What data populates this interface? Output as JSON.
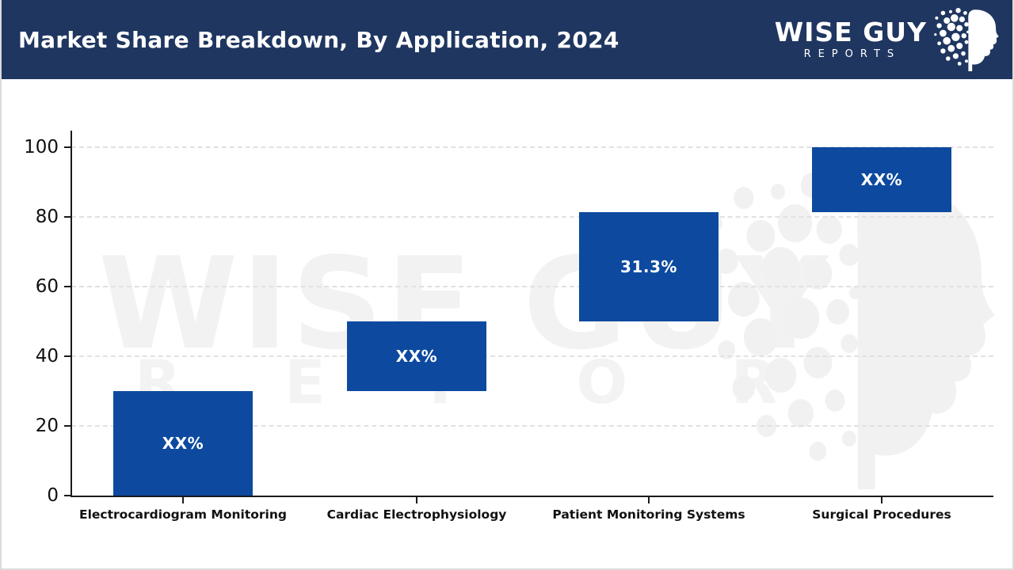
{
  "header": {
    "title": "Market Share Breakdown, By Application, 2024",
    "logo": {
      "line1": "WISE GUY",
      "line2": "REPORTS"
    }
  },
  "watermark": {
    "line1": "WISE GUY",
    "line2": "R E P O R T S"
  },
  "chart_data": {
    "type": "bar",
    "subtype": "floating-segment-waterfall",
    "title": "Market Share Breakdown, By Application, 2024",
    "categories": [
      "Electrocardiogram Monitoring",
      "Cardiac Electrophysiology",
      "Patient Monitoring Systems",
      "Surgical Procedures"
    ],
    "segments": [
      {
        "category": "Electrocardiogram Monitoring",
        "start": 0,
        "end": 30,
        "label": "XX%"
      },
      {
        "category": "Cardiac Electrophysiology",
        "start": 30,
        "end": 50,
        "label": "XX%"
      },
      {
        "category": "Patient Monitoring Systems",
        "start": 50,
        "end": 81.3,
        "label": "31.3%"
      },
      {
        "category": "Surgical Procedures",
        "start": 81.3,
        "end": 100,
        "label": "XX%"
      }
    ],
    "ylim": [
      0,
      100
    ],
    "yticks": [
      0,
      20,
      40,
      60,
      80,
      100
    ],
    "grid": "horizontal-dashed",
    "legend": "none",
    "bar_color": "#0d4a9f",
    "bar_label_color": "#ffffff",
    "header_color": "#1f3660"
  }
}
